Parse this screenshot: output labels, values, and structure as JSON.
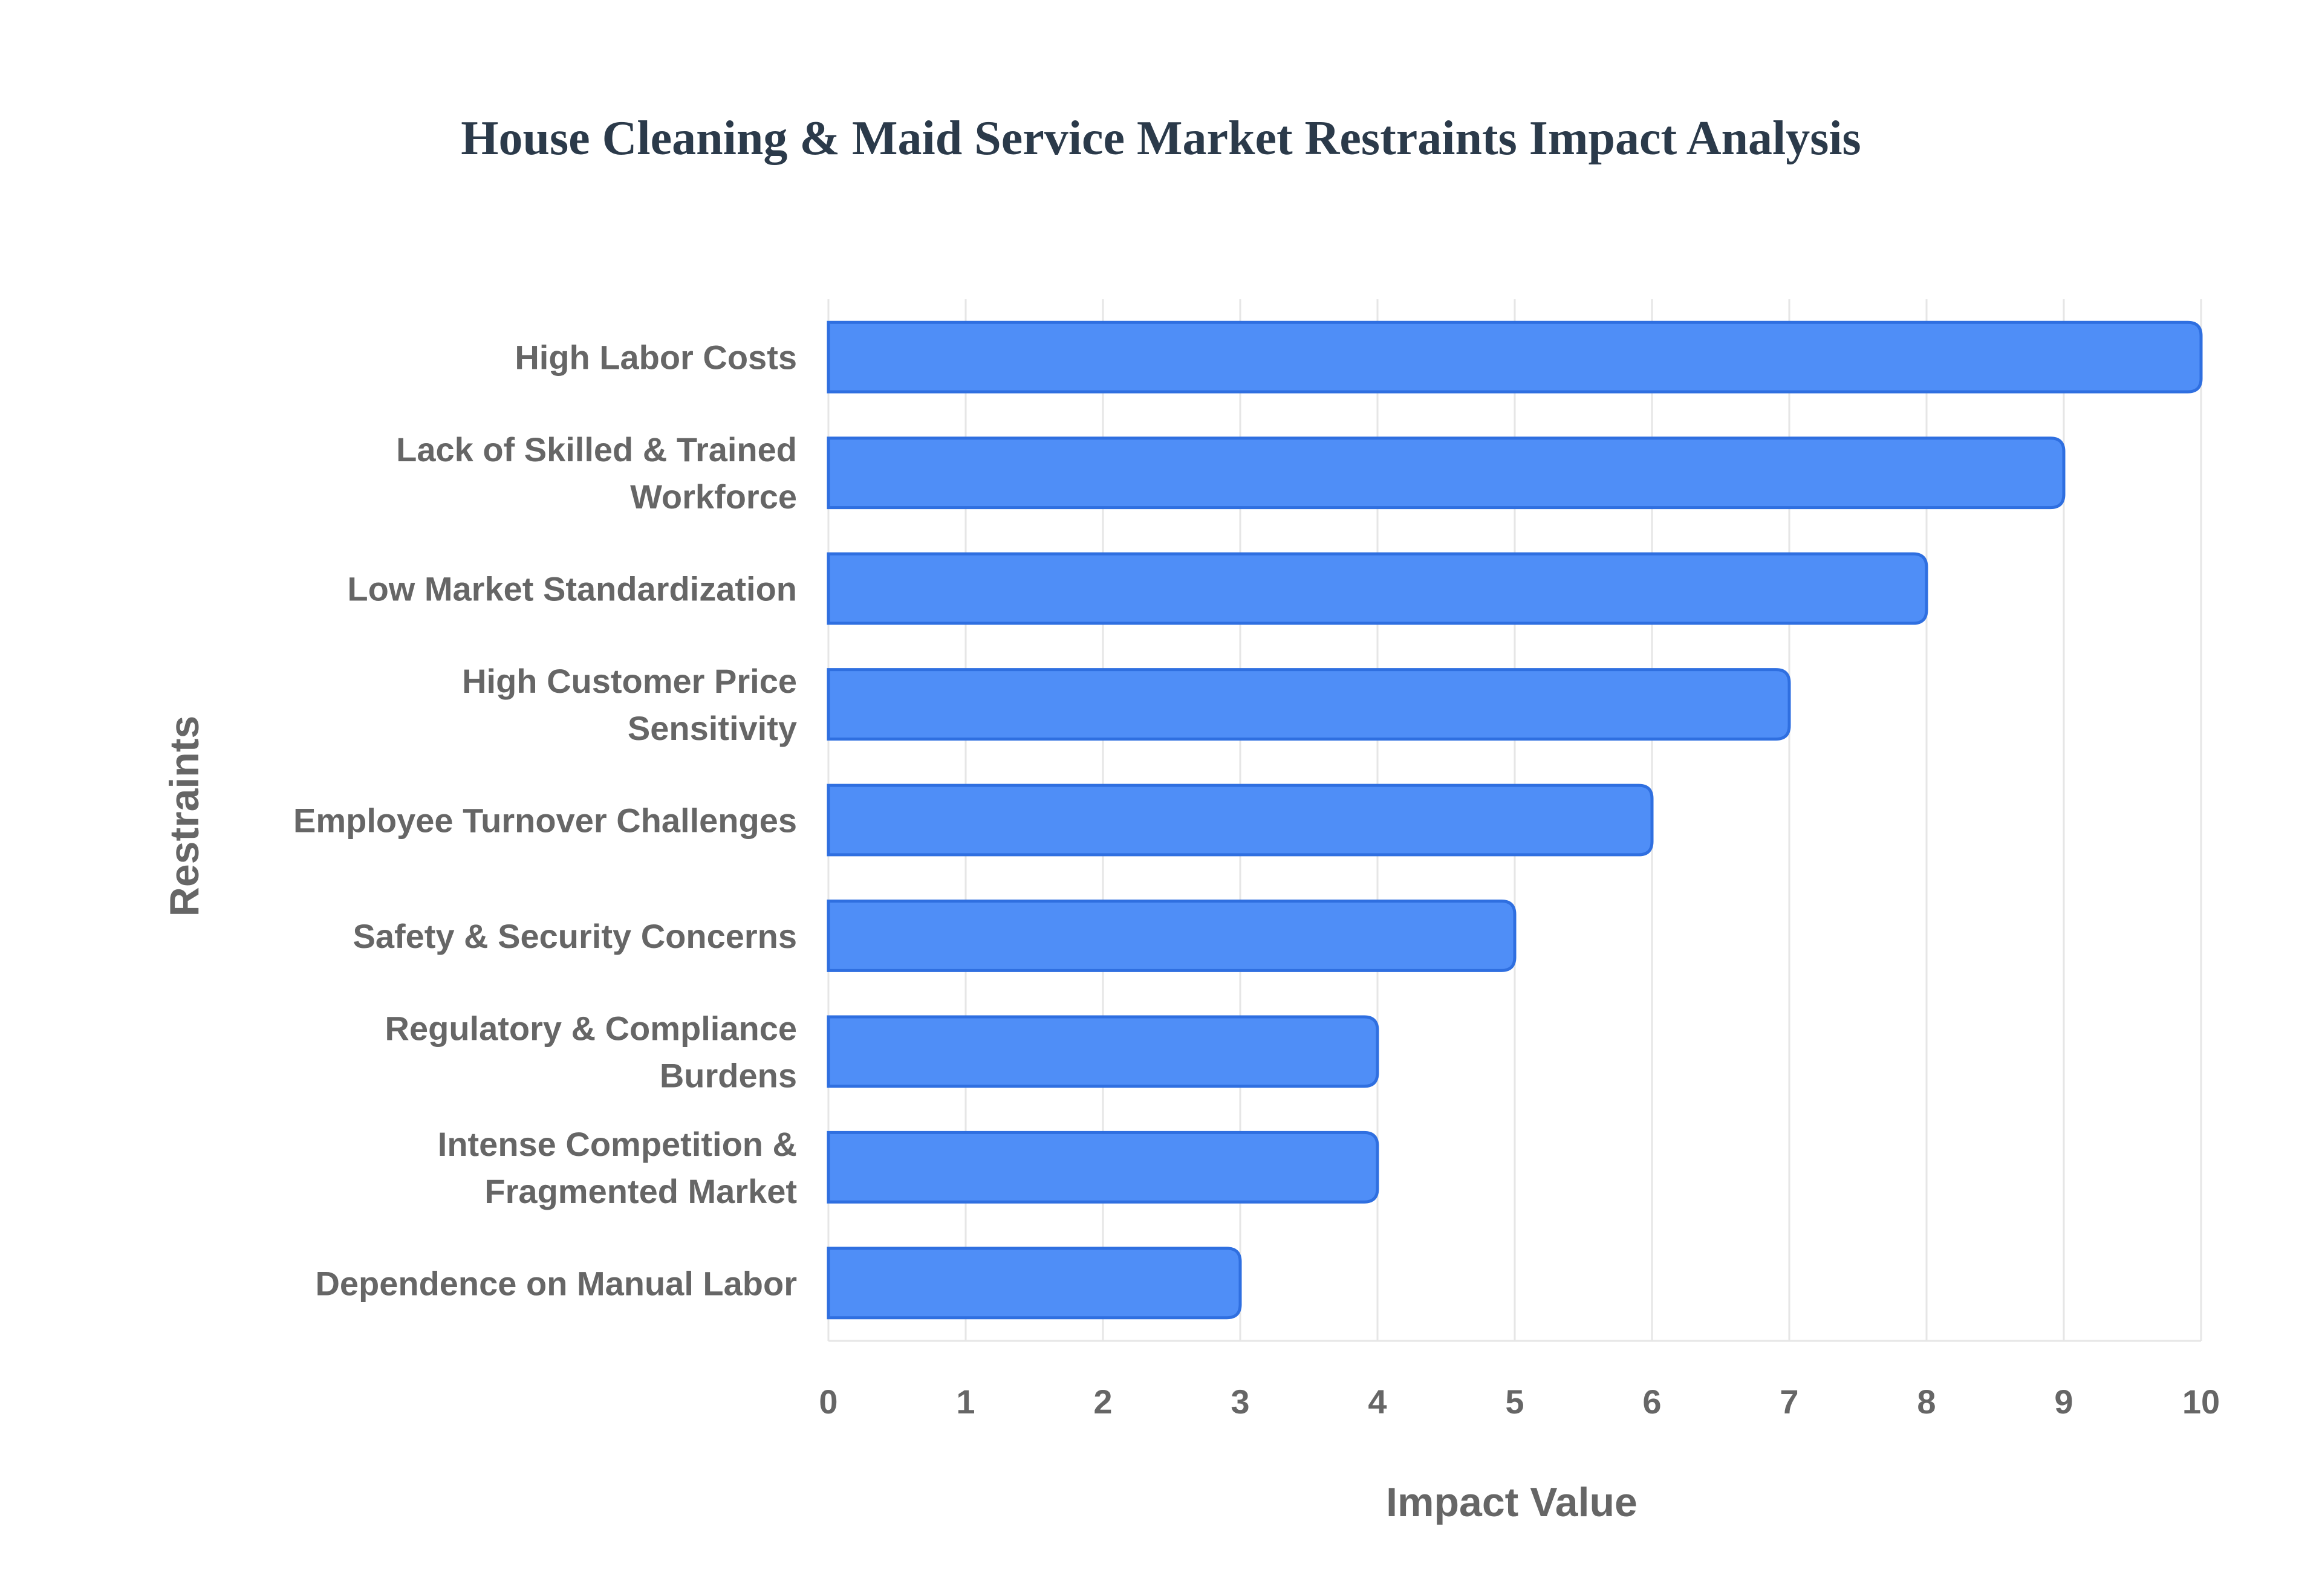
{
  "chart_data": {
    "type": "bar",
    "orientation": "horizontal",
    "title": "House Cleaning & Maid Service Market Restraints Impact Analysis",
    "xlabel": "Impact Value",
    "ylabel": "Restraints",
    "xlim": [
      0,
      10
    ],
    "xticks": [
      "0",
      "1",
      "2",
      "3",
      "4",
      "5",
      "6",
      "7",
      "8",
      "9",
      "10"
    ],
    "grid": true,
    "legend": "none",
    "colors": {
      "bar_fill": "#4f8ef7",
      "bar_stroke": "#2f6fe0",
      "title": "#2b3a4a",
      "text": "#666666",
      "grid": "#e6e6e6"
    },
    "categories": [
      [
        "High Labor Costs"
      ],
      [
        "Lack of Skilled & Trained",
        "Workforce"
      ],
      [
        "Low Market Standardization"
      ],
      [
        "High Customer Price",
        "Sensitivity"
      ],
      [
        "Employee Turnover Challenges"
      ],
      [
        "Safety & Security Concerns"
      ],
      [
        "Regulatory & Compliance",
        "Burdens"
      ],
      [
        "Intense Competition &",
        "Fragmented Market"
      ],
      [
        "Dependence on Manual Labor"
      ]
    ],
    "values": [
      10,
      9,
      8,
      7,
      6,
      5,
      4,
      4,
      3
    ]
  }
}
